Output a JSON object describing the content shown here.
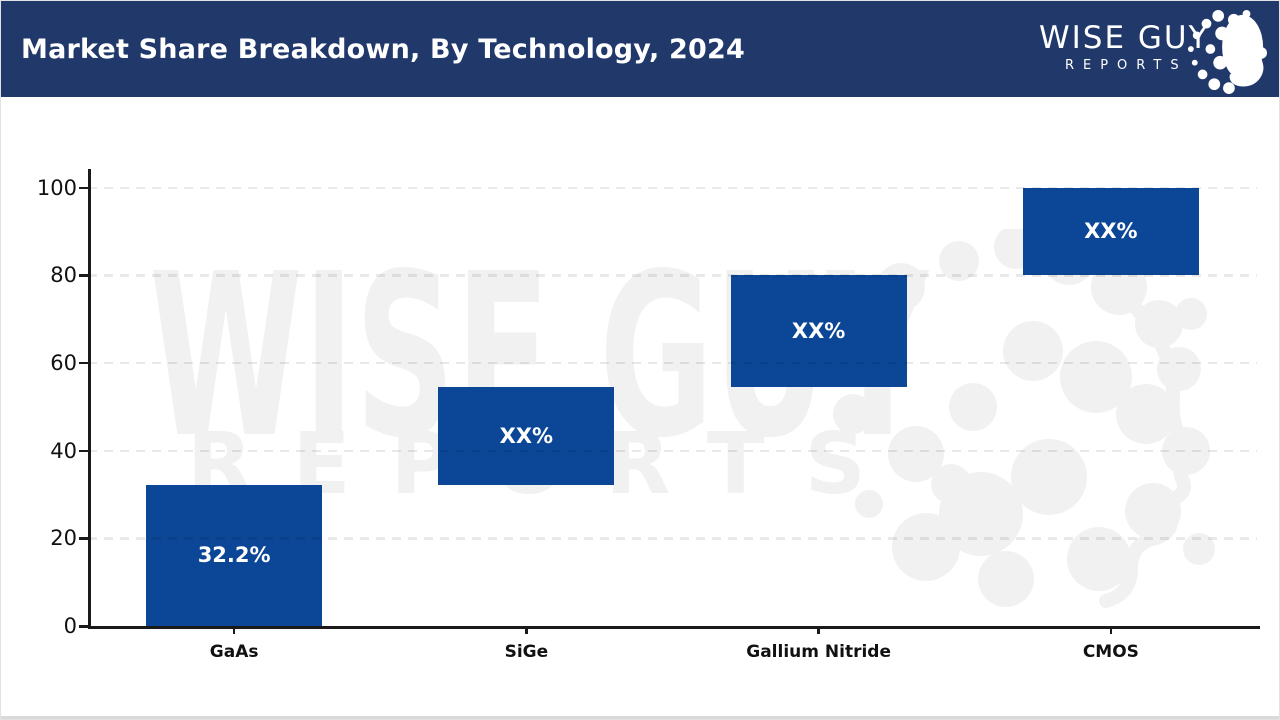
{
  "header": {
    "title": "Market Share Breakdown, By Technology, 2024",
    "logo": {
      "line1": "WISE GUY",
      "line2": "REPORTS"
    }
  },
  "watermark": {
    "line1": "WISE GUY",
    "line2": "REPORTS"
  },
  "chart_data": {
    "type": "bar",
    "subtype": "waterfall",
    "title": "Market Share Breakdown, By Technology, 2024",
    "categories": [
      "GaAs",
      "SiGe",
      "Gallium Nitride",
      "CMOS"
    ],
    "series": [
      {
        "name": "Market Share",
        "segments": [
          {
            "category": "GaAs",
            "start": 0,
            "end": 32.2,
            "label": "32.2%"
          },
          {
            "category": "SiGe",
            "start": 32.2,
            "end": 54.5,
            "label": "XX%"
          },
          {
            "category": "Gallium Nitride",
            "start": 54.5,
            "end": 80,
            "label": "XX%"
          },
          {
            "category": "CMOS",
            "start": 80,
            "end": 100,
            "label": "XX%"
          }
        ]
      }
    ],
    "ylabel": "",
    "xlabel": "",
    "yticks": [
      0,
      20,
      40,
      60,
      80,
      100
    ],
    "ylim": [
      0,
      104
    ],
    "grid": "horizontal-dashed",
    "legend": "none",
    "bar_color": "#0b4697",
    "bar_label_color": "#ffffff",
    "axis_color": "#1a1a1a",
    "header_color": "#21386b",
    "watermark_color": "#f1f1f1"
  }
}
